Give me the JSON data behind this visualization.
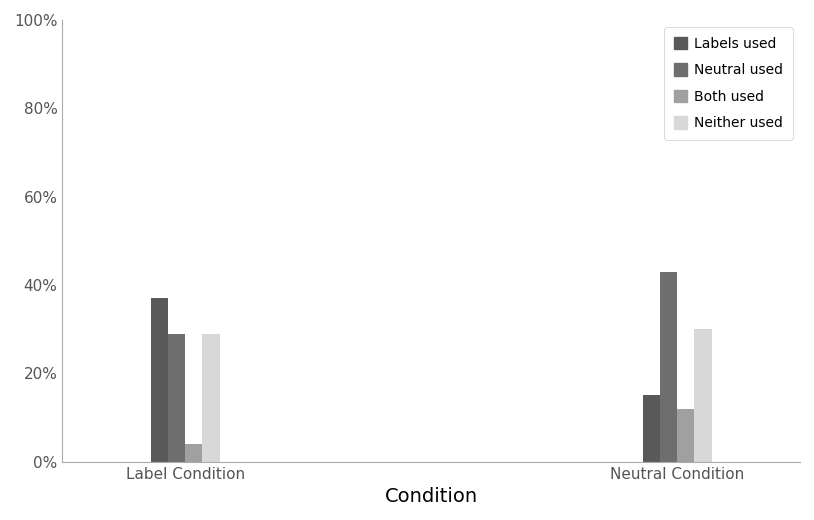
{
  "categories": [
    "Label Condition",
    "Neutral Condition"
  ],
  "series": [
    {
      "label": "Labels used",
      "values": [
        0.37,
        0.15
      ],
      "color": "#595959"
    },
    {
      "label": "Neutral used",
      "values": [
        0.29,
        0.43
      ],
      "color": "#6e6e6e"
    },
    {
      "label": "Both used",
      "values": [
        0.04,
        0.12
      ],
      "color": "#a0a0a0"
    },
    {
      "label": "Neither used",
      "values": [
        0.29,
        0.3
      ],
      "color": "#d8d8d8"
    }
  ],
  "xlabel": "Condition",
  "ylabel": "",
  "ylim": [
    0,
    1.0
  ],
  "yticks": [
    0,
    0.2,
    0.4,
    0.6,
    0.8,
    1.0
  ],
  "ytick_labels": [
    "0%",
    "20%",
    "40%",
    "60%",
    "80%",
    "100%"
  ],
  "bar_width": 0.07,
  "background_color": "#ffffff",
  "xlabel_fontsize": 14,
  "tick_fontsize": 11,
  "legend_fontsize": 10
}
